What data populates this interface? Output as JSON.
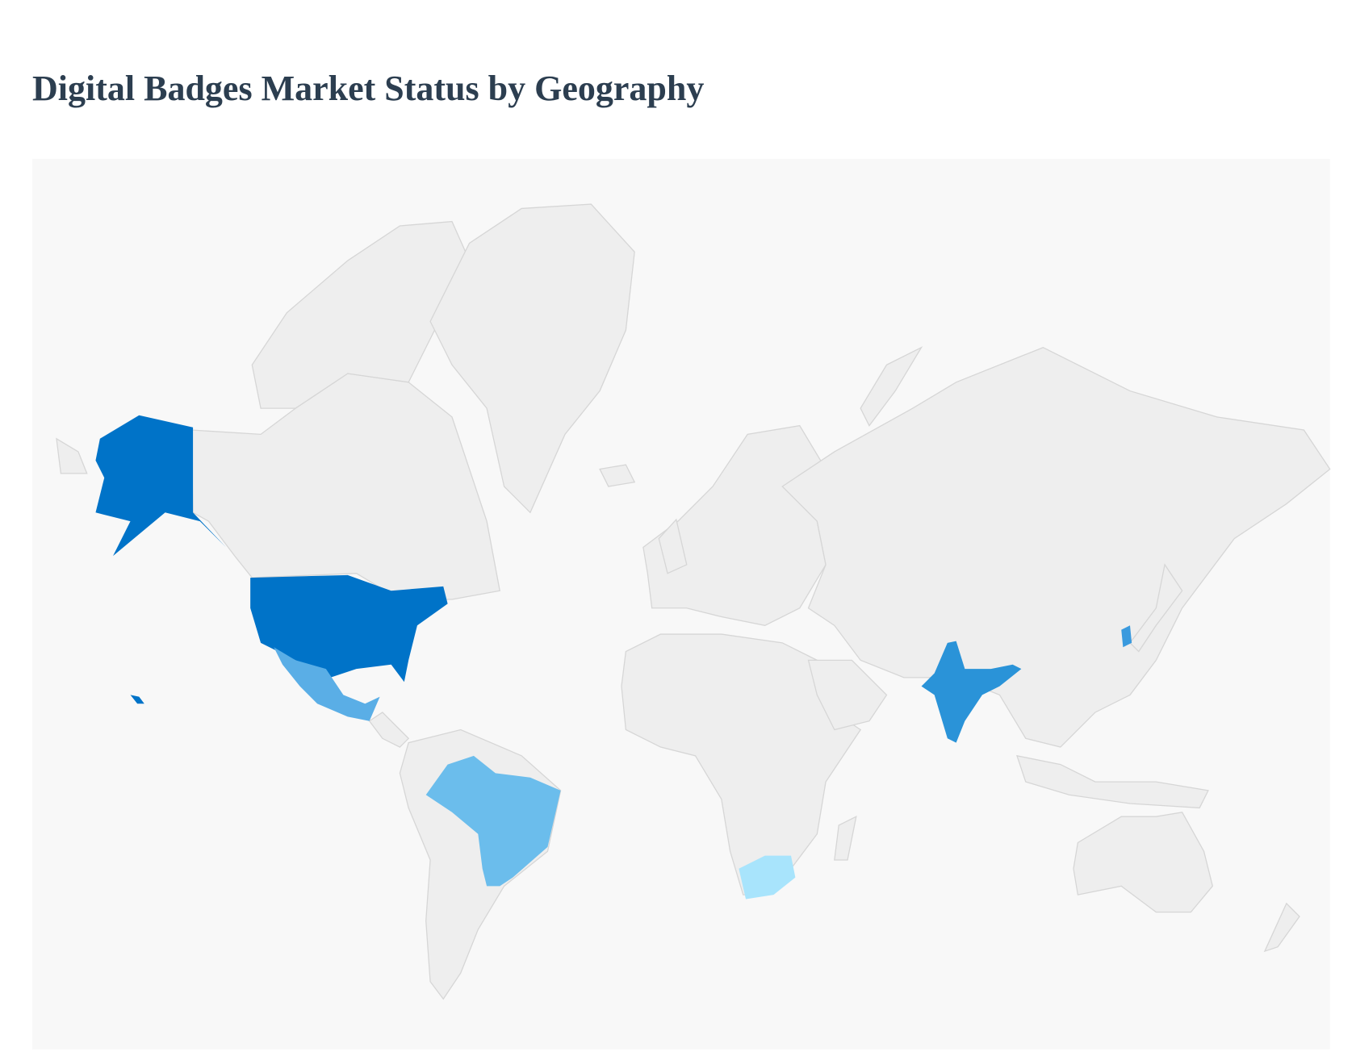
{
  "title": "Digital Badges Market Status by Geography",
  "map": {
    "background_color": "#f8f8f8",
    "default_land_color": "#eeeeee",
    "highlighted_countries": {
      "united_states": {
        "name": "United States",
        "color": "#0073c8"
      },
      "mexico": {
        "name": "Mexico",
        "color": "#5aaee6"
      },
      "brazil": {
        "name": "Brazil",
        "color": "#6bbdec"
      },
      "south_africa": {
        "name": "South Africa",
        "color": "#a8e4fc"
      },
      "india": {
        "name": "India",
        "color": "#2a93d8"
      },
      "south_korea": {
        "name": "South Korea",
        "color": "#3a9ade"
      }
    }
  }
}
